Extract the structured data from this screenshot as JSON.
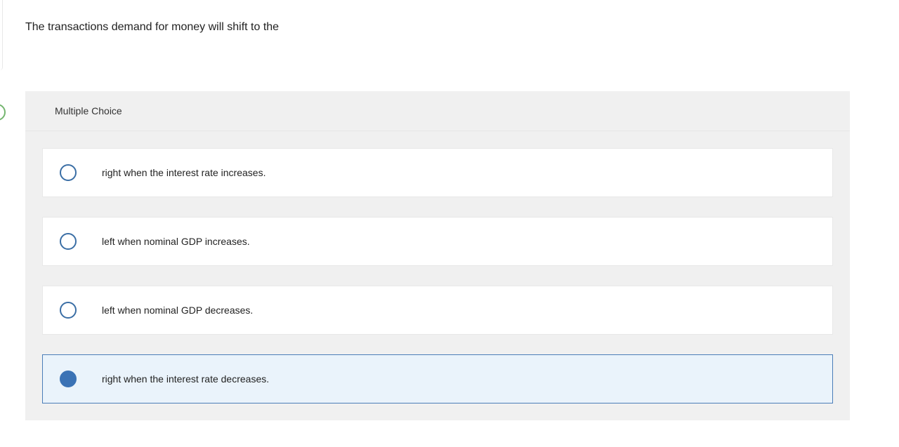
{
  "question": {
    "text": "The transactions demand for money will shift to the"
  },
  "section": {
    "header": "Multiple Choice"
  },
  "options": [
    {
      "label": "right when the interest rate increases.",
      "selected": false
    },
    {
      "label": "left when nominal GDP increases.",
      "selected": false
    },
    {
      "label": "left when nominal GDP decreases.",
      "selected": false
    },
    {
      "label": "right when the interest rate decreases.",
      "selected": true
    }
  ],
  "colors": {
    "page_bg": "#ffffff",
    "section_bg": "#f0f0f0",
    "option_bg": "#ffffff",
    "option_border": "#e8e8e8",
    "selected_bg": "#eaf3fb",
    "selected_border": "#4a7db8",
    "radio_border": "#3a6ea5",
    "radio_fill": "#3a72b5",
    "text_color": "#222222",
    "left_ring": "#74b56f"
  },
  "typography": {
    "question_fontsize": 16,
    "header_fontsize": 14,
    "option_fontsize": 14
  }
}
